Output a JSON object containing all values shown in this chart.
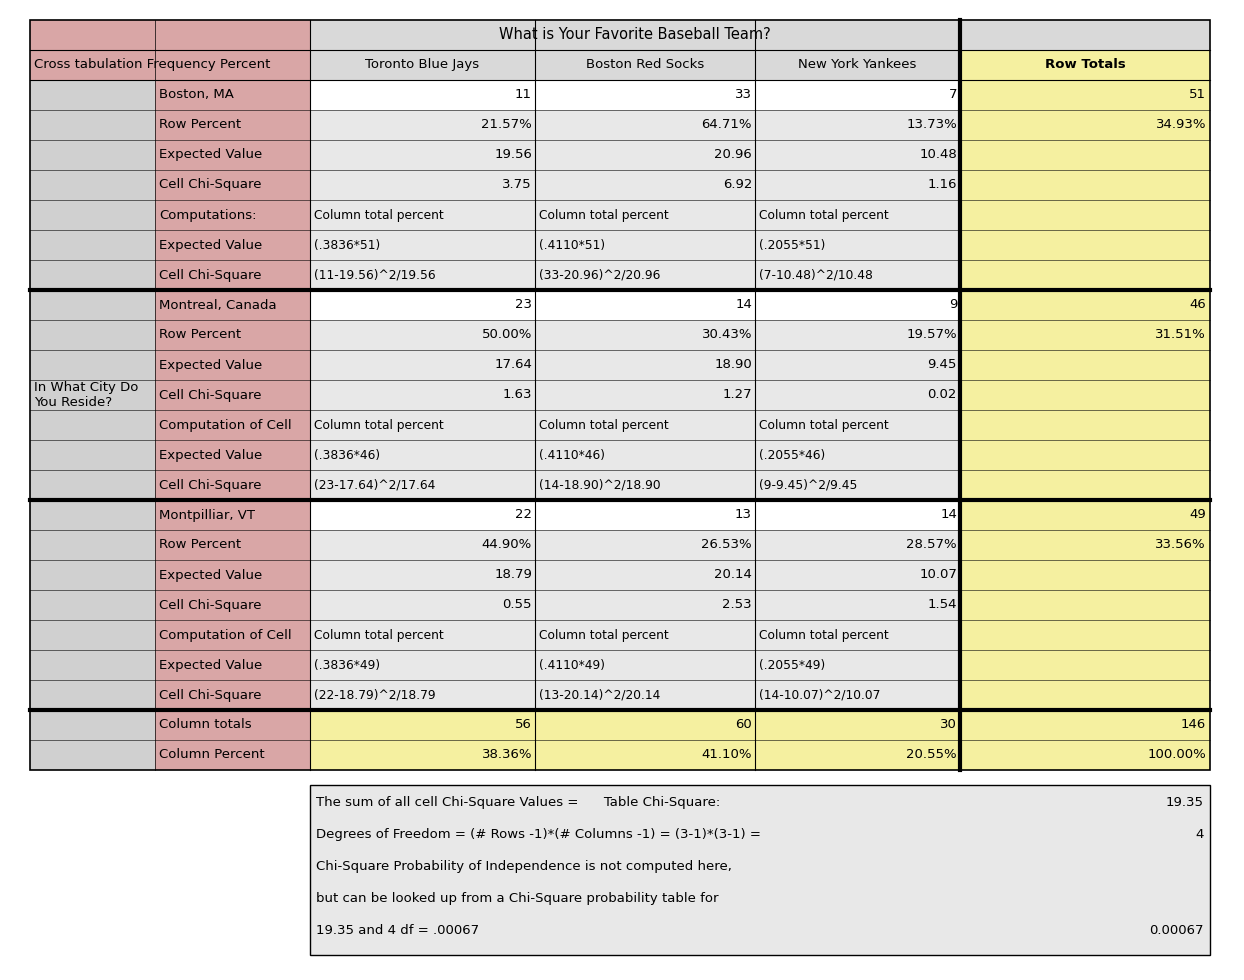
{
  "title": "What is Your Favorite Baseball Team?",
  "colors": {
    "header_pink": "#d9a6a6",
    "header_gray": "#d9d9d9",
    "cell_white": "#ffffff",
    "cell_light_gray": "#e8e8e8",
    "cell_yellow": "#f5f0a0",
    "left_gray": "#d0d0d0",
    "border": "#000000"
  },
  "sections": [
    {
      "data": [
        [
          "Boston, MA",
          "11",
          "33",
          "7",
          "51"
        ],
        [
          "Row Percent",
          "21.57%",
          "64.71%",
          "13.73%",
          "34.93%"
        ],
        [
          "Expected Value",
          "19.56",
          "20.96",
          "10.48",
          ""
        ],
        [
          "Cell Chi-Square",
          "3.75",
          "6.92",
          "1.16",
          ""
        ],
        [
          "Computations:",
          "Column total percent",
          "Column total percent",
          "Column total percent",
          ""
        ],
        [
          "Expected Value",
          "(.3836*51)",
          "(.4110*51)",
          "(.2055*51)",
          ""
        ],
        [
          "Cell Chi-Square",
          "(11-19.56)^2/19.56",
          "(33-20.96)^2/20.96",
          "(7-10.48)^2/10.48",
          ""
        ]
      ]
    },
    {
      "data": [
        [
          "Montreal, Canada",
          "23",
          "14",
          "9",
          "46"
        ],
        [
          "Row Percent",
          "50.00%",
          "30.43%",
          "19.57%",
          "31.51%"
        ],
        [
          "Expected Value",
          "17.64",
          "18.90",
          "9.45",
          ""
        ],
        [
          "Cell Chi-Square",
          "1.63",
          "1.27",
          "0.02",
          ""
        ],
        [
          "Computation of Cell",
          "Column total percent",
          "Column total percent",
          "Column total percent",
          ""
        ],
        [
          "Expected Value",
          "(.3836*46)",
          "(.4110*46)",
          "(.2055*46)",
          ""
        ],
        [
          "Cell Chi-Square",
          "(23-17.64)^2/17.64",
          "(14-18.90)^2/18.90",
          "(9-9.45)^2/9.45",
          ""
        ]
      ]
    },
    {
      "data": [
        [
          "Montpilliar, VT",
          "22",
          "13",
          "14",
          "49"
        ],
        [
          "Row Percent",
          "44.90%",
          "26.53%",
          "28.57%",
          "33.56%"
        ],
        [
          "Expected Value",
          "18.79",
          "20.14",
          "10.07",
          ""
        ],
        [
          "Cell Chi-Square",
          "0.55",
          "2.53",
          "1.54",
          ""
        ],
        [
          "Computation of Cell",
          "Column total percent",
          "Column total percent",
          "Column total percent",
          ""
        ],
        [
          "Expected Value",
          "(.3836*49)",
          "(.4110*49)",
          "(.2055*49)",
          ""
        ],
        [
          "Cell Chi-Square",
          "(22-18.79)^2/18.79",
          "(13-20.14)^2/20.14",
          "(14-10.07)^2/10.07",
          ""
        ]
      ]
    }
  ],
  "totals": [
    [
      "Column totals",
      "56",
      "60",
      "30",
      "146"
    ],
    [
      "Column Percent",
      "38.36%",
      "41.10%",
      "20.55%",
      "100.00%"
    ]
  ],
  "city_label": "In What City Do\nYou Reside?",
  "footer": [
    [
      "The sum of all cell Chi-Square Values =      Table Chi-Square:",
      "19.35"
    ],
    [
      "Degrees of Freedom = (# Rows -1)*(# Columns -1) = (3-1)*(3-1) =",
      "4"
    ],
    [
      "Chi-Square Probability of Independence is not computed here,",
      ""
    ],
    [
      "but can be looked up from a Chi-Square probability table for",
      ""
    ],
    [
      "19.35 and 4 df = .00067",
      "0.00067"
    ]
  ]
}
